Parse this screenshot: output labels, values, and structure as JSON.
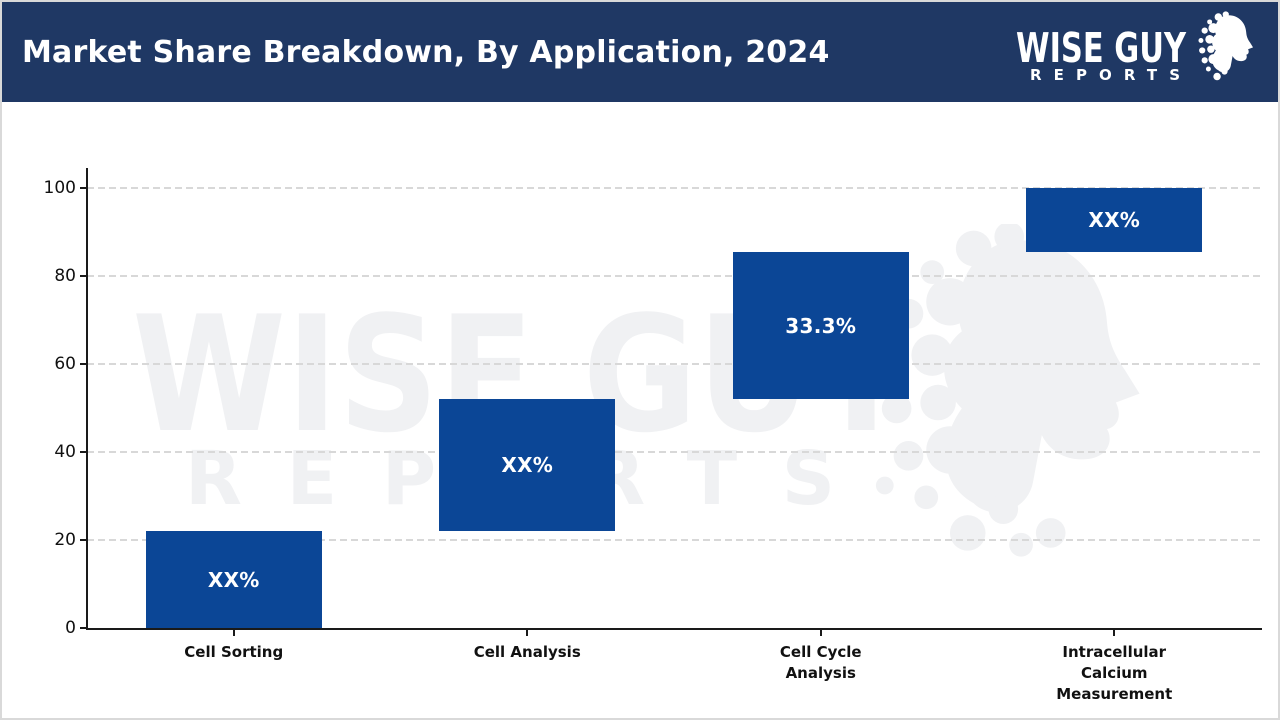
{
  "header": {
    "title": "Market Share Breakdown, By Application, 2024",
    "logo": {
      "name": "WISE GUY",
      "sub": "REPORTS"
    }
  },
  "watermark": {
    "name": "WISE GUY",
    "sub": "REPORTS"
  },
  "chart_data": {
    "type": "bar",
    "subtype": "floating-waterfall",
    "title": "Market Share Breakdown, By Application, 2024",
    "categories": [
      "Cell Sorting",
      "Cell Analysis",
      "Cell Cycle\nAnalysis",
      "Intracellular\nCalcium\nMeasurement"
    ],
    "bars": [
      {
        "category": "Cell Sorting",
        "start": 0,
        "end": 22,
        "label": "XX%"
      },
      {
        "category": "Cell Analysis",
        "start": 22,
        "end": 52,
        "label": "XX%"
      },
      {
        "category": "Cell Cycle Analysis",
        "start": 52,
        "end": 85.3,
        "label": "33.3%"
      },
      {
        "category": "Intracellular Calcium Measurement",
        "start": 85.3,
        "end": 100,
        "label": "XX%"
      }
    ],
    "ylim": [
      0,
      100
    ],
    "yticks": [
      0,
      20,
      40,
      60,
      80,
      100
    ],
    "xlabel": "",
    "ylabel": "",
    "grid": "horizontal-dashed",
    "legend": "none",
    "bar_color": "#0b4696"
  },
  "colors": {
    "header_bg": "#1f3864",
    "bar": "#0b4696",
    "grid": "#d8d8d8",
    "axis": "#1a1a1a",
    "watermark": "#f0f1f3",
    "page_border": "#d9d9d9"
  }
}
